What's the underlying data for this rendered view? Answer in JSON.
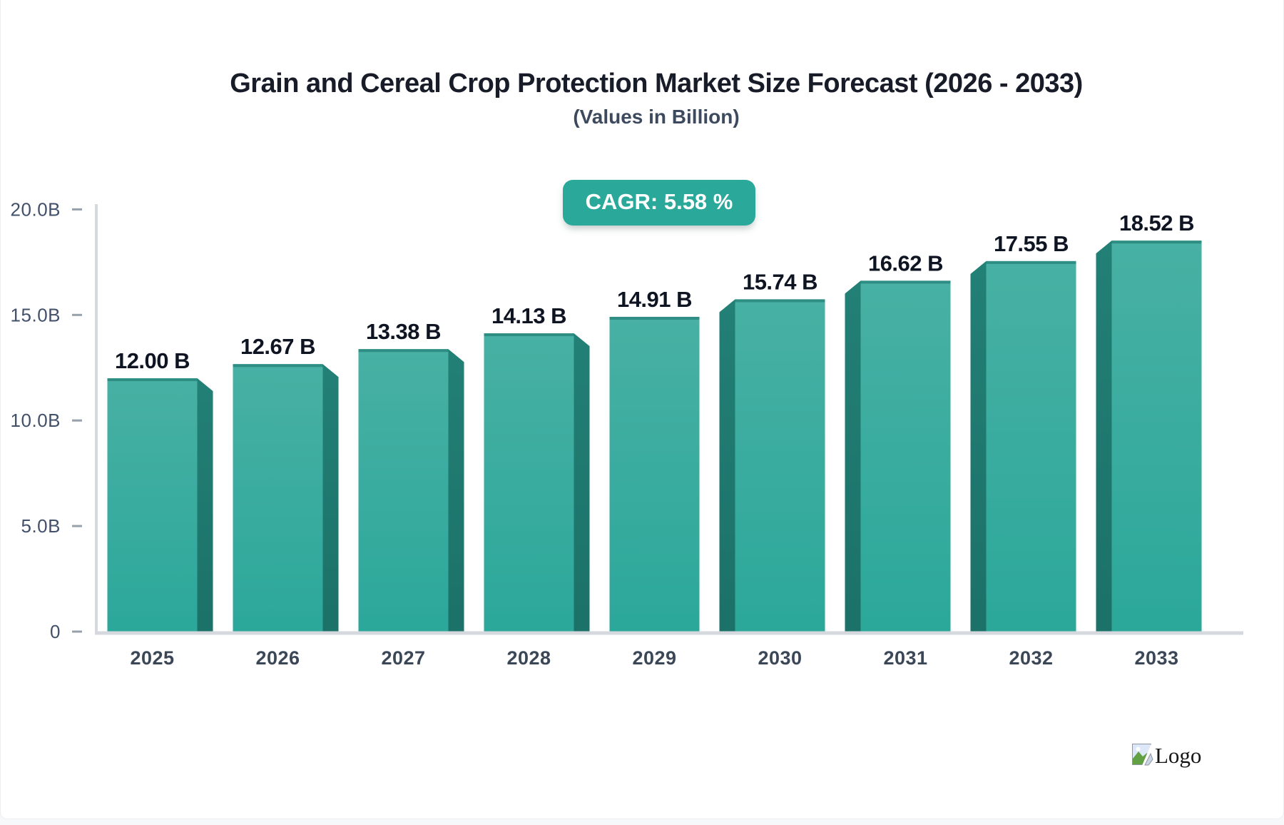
{
  "header": {
    "title": "Grain and Cereal Crop Protection Market Size Forecast (2026 - 2033)",
    "subtitle": "(Values in Billion)",
    "badge_label": "CAGR: 5.58 %"
  },
  "chart_data": {
    "type": "bar",
    "title": "Grain and Cereal Crop Protection Market Size Forecast (2026 - 2033)",
    "subtitle": "(Values in Billion)",
    "cagr_pct": 5.58,
    "categories": [
      "2025",
      "2026",
      "2027",
      "2028",
      "2029",
      "2030",
      "2031",
      "2032",
      "2033"
    ],
    "values": [
      12.0,
      12.67,
      13.38,
      14.13,
      14.91,
      15.74,
      16.62,
      17.55,
      18.52
    ],
    "value_labels": [
      "12.00 B",
      "12.67 B",
      "13.38 B",
      "14.13 B",
      "14.91 B",
      "15.74 B",
      "16.62 B",
      "17.55 B",
      "18.52 B"
    ],
    "unit": "Billion",
    "xlabel": "",
    "ylabel": "",
    "ylim": [
      0,
      20
    ],
    "grid": false,
    "legend": false,
    "y_ticks": [
      {
        "value": 20,
        "label": "20.0B"
      },
      {
        "value": 15,
        "label": "15.0B"
      },
      {
        "value": 10,
        "label": "10.0B"
      },
      {
        "value": 5,
        "label": "5.0B"
      },
      {
        "value": 0,
        "label": "0"
      }
    ],
    "colors": {
      "bar_front_top": "#48b0a4",
      "bar_front_bottom": "#2ba89a",
      "bar_side_top": "#228076",
      "bar_side_bottom": "#1c7168",
      "bar_top_edge": "#2e8e84",
      "axis_line": "#d5d8dd",
      "tick": "#97a1ac",
      "tick_label": "#42506a",
      "year_label": "#3b4757",
      "value_label": "#0e1422",
      "badge_bg": "#2aa89a",
      "badge_text": "#ffffff"
    }
  },
  "footer": {
    "logo_alt": "Logo"
  }
}
